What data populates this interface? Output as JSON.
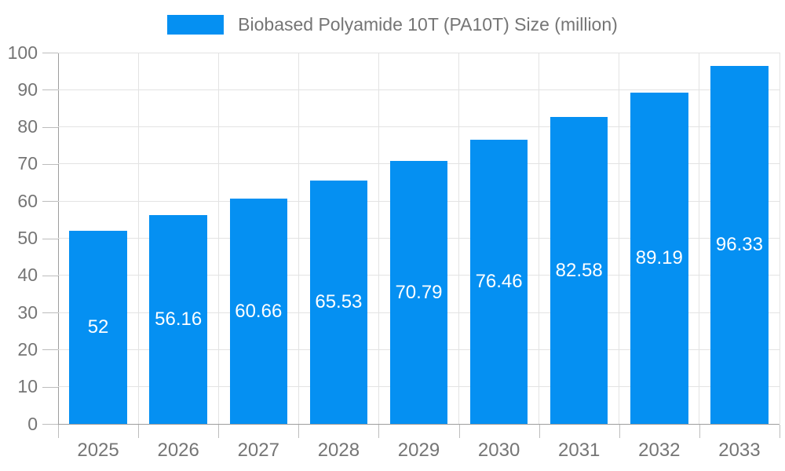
{
  "chart_data": {
    "type": "bar",
    "title": "",
    "legend_label": "Biobased Polyamide 10T (PA10T) Size (million)",
    "legend_position": "top-center",
    "categories": [
      "2025",
      "2026",
      "2027",
      "2028",
      "2029",
      "2030",
      "2031",
      "2032",
      "2033"
    ],
    "series": [
      {
        "name": "Biobased Polyamide 10T (PA10T) Size (million)",
        "values": [
          52,
          56.16,
          60.66,
          65.53,
          70.79,
          76.46,
          82.58,
          89.19,
          96.33
        ]
      }
    ],
    "value_labels": [
      "52",
      "56.16",
      "60.66",
      "65.53",
      "70.79",
      "76.46",
      "82.58",
      "89.19",
      "96.33"
    ],
    "xlabel": "",
    "ylabel": "",
    "ylim": [
      0,
      100
    ],
    "ytick_step": 10,
    "grid": true,
    "value_labels_shown": true,
    "colors": {
      "bar": "#0590F2",
      "value_label": "#FFFFFF",
      "axis": "#9E9E9E",
      "tick": "#BDBDBD",
      "grid": "#E3E3E3",
      "text": "#757575",
      "background": "#FFFFFF"
    }
  }
}
